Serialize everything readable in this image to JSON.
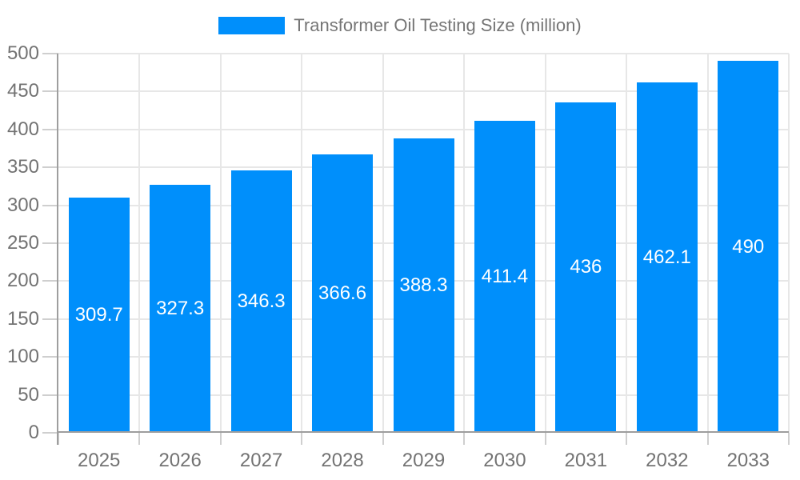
{
  "chart_data": {
    "type": "bar",
    "title": "",
    "legend_label": "Transformer Oil Testing Size (million)",
    "legend_position": "top",
    "categories": [
      "2025",
      "2026",
      "2027",
      "2028",
      "2029",
      "2030",
      "2031",
      "2032",
      "2033"
    ],
    "values": [
      309.7,
      327.3,
      346.3,
      366.6,
      388.3,
      411.4,
      436,
      462.1,
      490
    ],
    "value_labels": [
      "309.7",
      "327.3",
      "346.3",
      "366.6",
      "388.3",
      "411.4",
      "436",
      "462.1",
      "490"
    ],
    "xlabel": "",
    "ylabel": "",
    "ylim": [
      0,
      500
    ],
    "ytick_step": 50,
    "yticks": [
      0,
      50,
      100,
      150,
      200,
      250,
      300,
      350,
      400,
      450,
      500
    ],
    "grid": true,
    "colors": {
      "bar": "#008FFB",
      "bar_value_label": "#ffffff",
      "axis_text": "#737373",
      "legend_text": "#757575",
      "gridline": "#e7e7e7",
      "tick": "#cfcfcf",
      "axis_line": "#9e9e9e",
      "background": "#ffffff"
    }
  }
}
